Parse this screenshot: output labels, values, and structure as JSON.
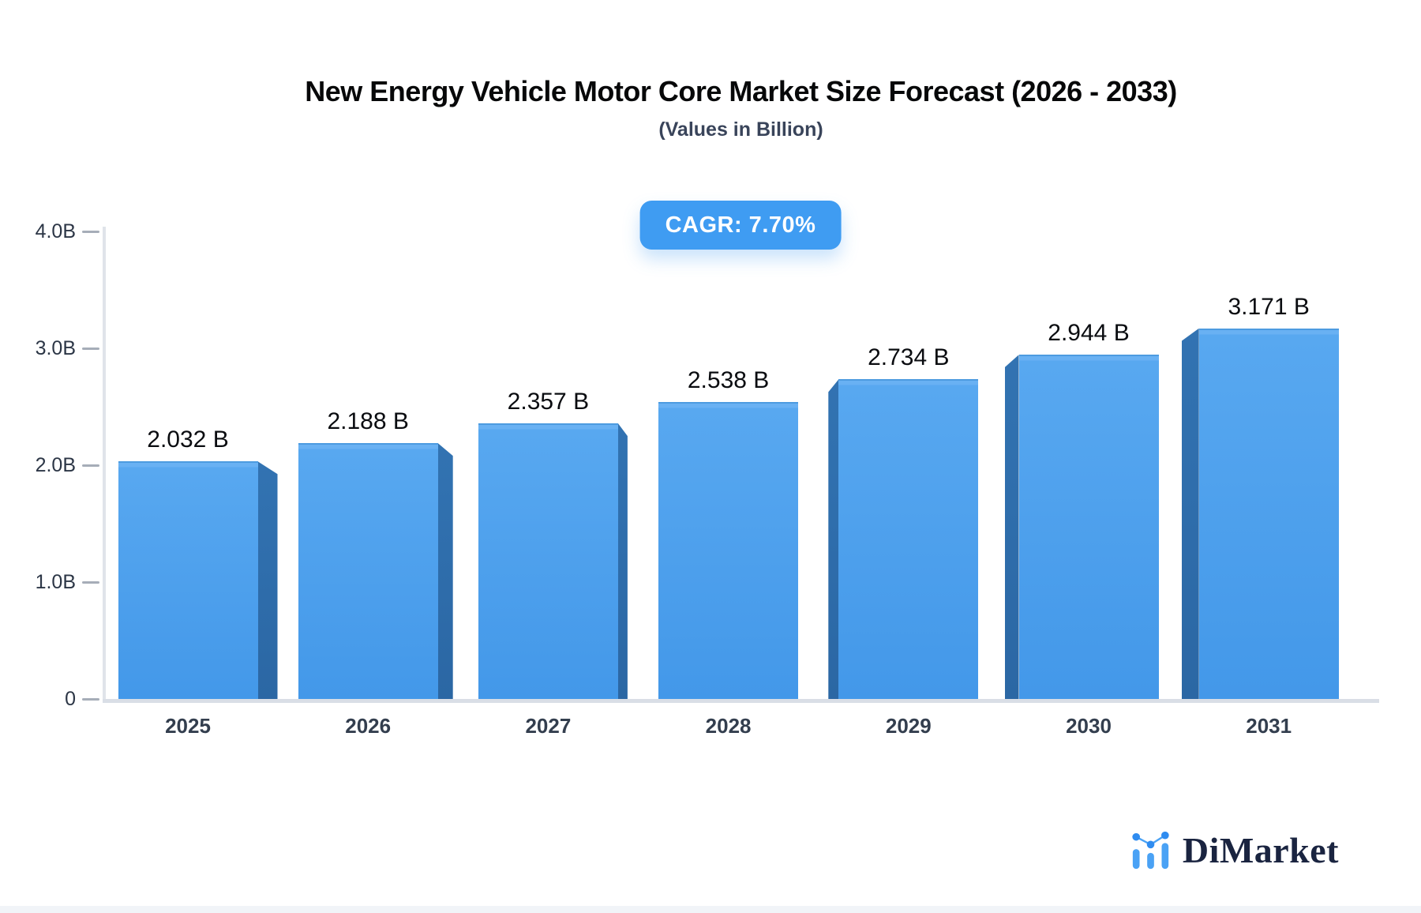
{
  "chart_data": {
    "type": "bar",
    "title": "New Energy Vehicle Motor Core Market Size Forecast (2026 - 2033)",
    "subtitle": "(Values in Billion)",
    "cagr_label": "CAGR: 7.70%",
    "categories": [
      "2025",
      "2026",
      "2027",
      "2028",
      "2029",
      "2030",
      "2031"
    ],
    "values": [
      2.032,
      2.188,
      2.357,
      2.538,
      2.734,
      2.944,
      3.171
    ],
    "value_labels": [
      "2.032 B",
      "2.188 B",
      "2.357 B",
      "2.538 B",
      "2.734 B",
      "2.944 B",
      "3.171 B"
    ],
    "xlabel": "",
    "ylabel": "",
    "ylim": [
      0,
      4.0
    ],
    "ytick_values": [
      4,
      3,
      2,
      1,
      0
    ],
    "ytick_labels": [
      "4.0B",
      "3.0B",
      "2.0B",
      "1.0B",
      "0"
    ],
    "grid": false,
    "legend": "none",
    "bar_style": "3d-perspective-toward-center"
  },
  "branding": {
    "logo_text": "DiMarket",
    "logo_icon": "mini-bar-line-chart-icon"
  },
  "colors": {
    "bar_face": "#4DA0EC",
    "bar_face_highlight": "#69B1F3",
    "bar_side": "#2E6DAB",
    "badge_bg": "#3F9CF2",
    "badge_text": "#FFFFFF",
    "axis_line": "#DDE2E9",
    "tick_dash": "#A6ADB8",
    "y_label_text": "#2C3646",
    "x_label_text": "#333E4E",
    "value_label_text": "#0A0C10",
    "title_text": "#070809",
    "subtitle_text": "#39445A",
    "logo_text": "#1A2440",
    "logo_blue": "#4AA2F5",
    "bottom_band": "#F1F4F8"
  }
}
